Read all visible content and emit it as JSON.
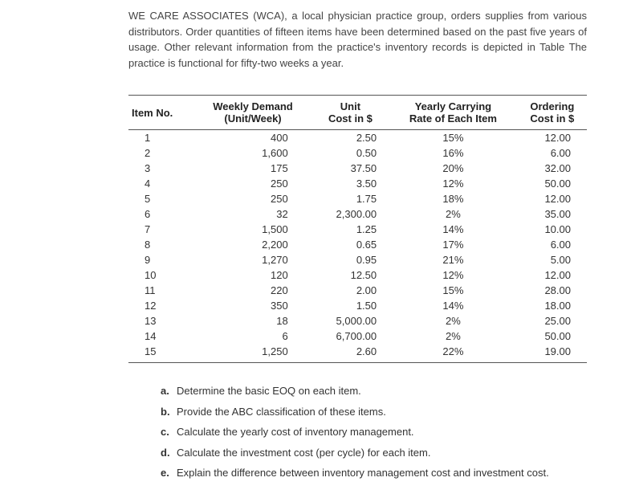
{
  "intro": "WE CARE ASSOCIATES (WCA), a local physician practice group, orders supplies from various distributors. Order quantities of fifteen items have been determined based on the past five years of usage. Other relevant information from the practice's inventory records is depicted in Table              The practice is functional for fifty-two weeks a year.",
  "columns": [
    "Item No.",
    "Weekly Demand (Unit/Week)",
    "Unit Cost in $",
    "Yearly Carrying Rate of Each Item",
    "Ordering Cost in $"
  ],
  "col0a": "Item No.",
  "col1a": "Weekly Demand",
  "col1b": "(Unit/Week)",
  "col2a": "Unit",
  "col2b": "Cost in $",
  "col3a": "Yearly Carrying",
  "col3b": "Rate of Each Item",
  "col4a": "Ordering",
  "col4b": "Cost in $",
  "rows": [
    [
      "1",
      "400",
      "2.50",
      "15%",
      "12.00"
    ],
    [
      "2",
      "1,600",
      "0.50",
      "16%",
      "6.00"
    ],
    [
      "3",
      "175",
      "37.50",
      "20%",
      "32.00"
    ],
    [
      "4",
      "250",
      "3.50",
      "12%",
      "50.00"
    ],
    [
      "5",
      "250",
      "1.75",
      "18%",
      "12.00"
    ],
    [
      "6",
      "32",
      "2,300.00",
      "2%",
      "35.00"
    ],
    [
      "7",
      "1,500",
      "1.25",
      "14%",
      "10.00"
    ],
    [
      "8",
      "2,200",
      "0.65",
      "17%",
      "6.00"
    ],
    [
      "9",
      "1,270",
      "0.95",
      "21%",
      "5.00"
    ],
    [
      "10",
      "120",
      "12.50",
      "12%",
      "12.00"
    ],
    [
      "11",
      "220",
      "2.00",
      "15%",
      "28.00"
    ],
    [
      "12",
      "350",
      "1.50",
      "14%",
      "18.00"
    ],
    [
      "13",
      "18",
      "5,000.00",
      "2%",
      "25.00"
    ],
    [
      "14",
      "6",
      "6,700.00",
      "2%",
      "50.00"
    ],
    [
      "15",
      "1,250",
      "2.60",
      "22%",
      "19.00"
    ]
  ],
  "questions": [
    {
      "letter": "a.",
      "text": "Determine the basic EOQ on each item."
    },
    {
      "letter": "b.",
      "text": "Provide the ABC classification of these items."
    },
    {
      "letter": "c.",
      "text": "Calculate the yearly cost of inventory management."
    },
    {
      "letter": "d.",
      "text": "Calculate the investment cost (per cycle) for each item."
    },
    {
      "letter": "e.",
      "text": "Explain the difference between inventory management cost and investment cost."
    }
  ]
}
